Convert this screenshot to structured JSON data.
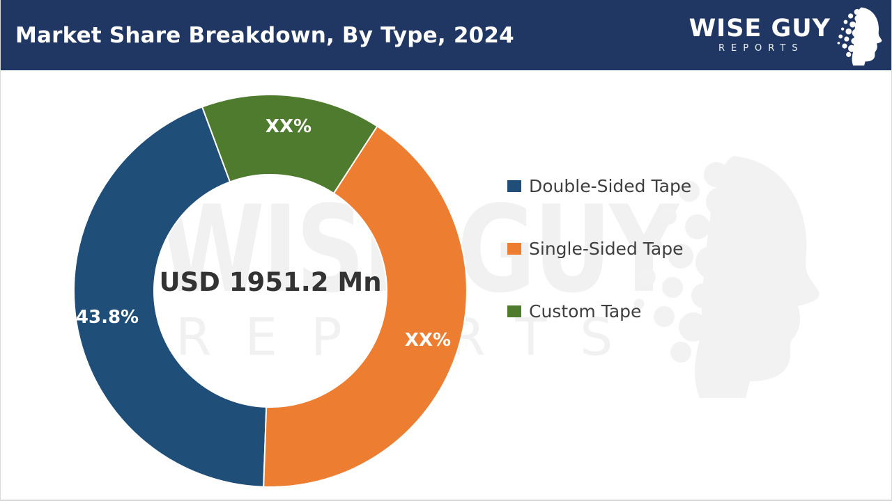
{
  "header": {
    "title": "Market Share Breakdown, By Type, 2024",
    "logo": {
      "line1": "WISE GUY",
      "line2": "REPORTS"
    }
  },
  "watermark": {
    "line1": "WISE GUY",
    "line2": "REPORTS"
  },
  "colors": {
    "header_bg": "#213763",
    "blue": "#1f4e79",
    "orange": "#ed7d31",
    "green": "#4e7b2e",
    "watermark": "#f1f1f2",
    "center_text": "#333333",
    "legend_text": "#3f3f3f",
    "canvas_border": "#d9d9d9"
  },
  "chart_data": {
    "type": "pie",
    "subtype": "donut",
    "title": "Market Share Breakdown, By Type, 2024",
    "center_label": "USD 1951.2 Mn",
    "start_angle_deg": 92,
    "direction": "clockwise",
    "segments": [
      {
        "name": "Double-Sided Tape",
        "value_pct": 43.8,
        "display_label": "43.8%",
        "color": "#1f4e79"
      },
      {
        "name": "Custom Tape",
        "value_pct": 14.8,
        "display_label": "XX%",
        "color": "#4e7b2e"
      },
      {
        "name": "Single-Sided Tape",
        "value_pct": 41.4,
        "display_label": "XX%",
        "color": "#ed7d31"
      }
    ],
    "legend_position": "right",
    "grid": false
  },
  "legend": {
    "items": [
      {
        "label": "Double-Sided Tape",
        "color": "#1f4e79"
      },
      {
        "label": "Single-Sided Tape",
        "color": "#ed7d31"
      },
      {
        "label": "Custom Tape",
        "color": "#4e7b2e"
      }
    ]
  }
}
